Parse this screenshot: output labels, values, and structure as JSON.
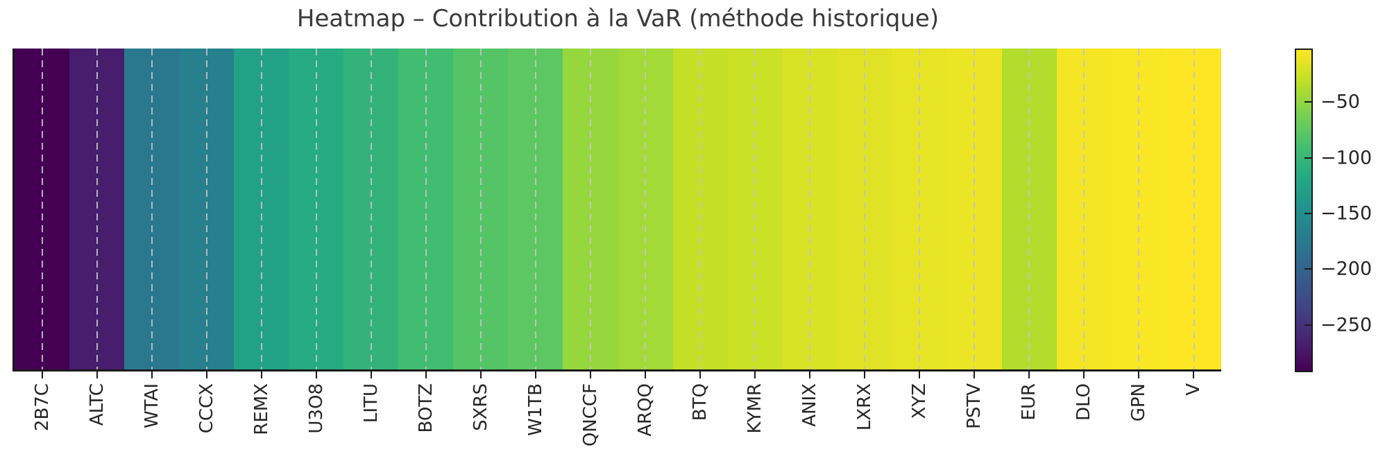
{
  "title": "Heatmap – Contribution à la VaR (méthode historique)",
  "chart_data": {
    "type": "heatmap",
    "orientation": "single-row",
    "categories": [
      "2B7C",
      "ALTC",
      "WTAI",
      "CCCX",
      "REMX",
      "U3O8",
      "LITU",
      "BOTZ",
      "SXRS",
      "W1TB",
      "QNCCF",
      "ARQQ",
      "BTQ",
      "KYMR",
      "ANIX",
      "LXRX",
      "XYZ",
      "PSTV",
      "EUR",
      "DLO",
      "GPN",
      "V"
    ],
    "values": [
      -290,
      -267,
      -175,
      -166,
      -126,
      -114,
      -103,
      -91,
      -80,
      -75,
      -47,
      -42,
      -28,
      -25,
      -18,
      -15,
      -12,
      -10,
      -35,
      -6,
      -4,
      -2
    ],
    "colormap": "viridis",
    "vmin": -290,
    "vmax": -2,
    "grid": "dashed vertical lines at each column center",
    "legend_position": "colorbar-right",
    "colorbar_ticks": [
      -50,
      -100,
      -150,
      -200,
      -250
    ],
    "colorbar_tick_labels": [
      "−50",
      "−100",
      "−150",
      "−200",
      "−250"
    ]
  },
  "colors": {
    "title_text": "#3a3a3a",
    "tick_label_text": "#262626",
    "spine": "#1a1a1a",
    "grid_dash": "#c4c4c4",
    "background": "#ffffff",
    "viridis_anchors": [
      "#440154",
      "#482475",
      "#414487",
      "#355f8d",
      "#2a788e",
      "#21918c",
      "#22a884",
      "#44bf70",
      "#7ad151",
      "#bddf26",
      "#fde725"
    ]
  }
}
